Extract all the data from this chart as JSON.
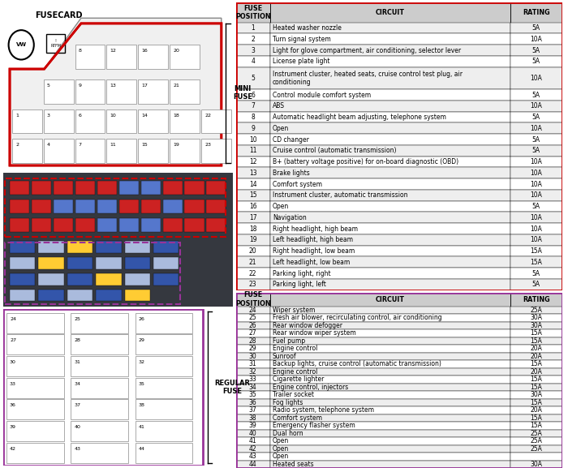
{
  "bg_color": "#ffffff",
  "mini_fuse_border": "#cc0000",
  "regular_fuse_border": "#993399",
  "table1_border": "#cc0000",
  "table2_border": "#993399",
  "table_header_bg": "#cccccc",
  "mini_fuse_label": "MINI\nFUSE",
  "regular_fuse_label": "REGULAR\nFUSE",
  "table1_headers": [
    "FUSE\nPOSITION",
    "CIRCUIT",
    "RATING"
  ],
  "table2_headers": [
    "FUSE\nPOSITION",
    "CIRCUIT",
    "RATING"
  ],
  "table1_data": [
    [
      1,
      "Heated washer nozzle",
      "5A"
    ],
    [
      2,
      "Turn signal system",
      "10A"
    ],
    [
      3,
      "Light for glove compartment, air conditioning, selector lever",
      "5A"
    ],
    [
      4,
      "License plate light",
      "5A"
    ],
    [
      5,
      "Instrument cluster, heated seats, cruise control test plug, air\nconditioning",
      "10A"
    ],
    [
      6,
      "Control module comfort system",
      "5A"
    ],
    [
      7,
      "ABS",
      "10A"
    ],
    [
      8,
      "Automatic headlight beam adjusting, telephone system",
      "5A"
    ],
    [
      9,
      "Open",
      "10A"
    ],
    [
      10,
      "CD changer",
      "5A"
    ],
    [
      11,
      "Cruise control (automatic transmission)",
      "5A"
    ],
    [
      12,
      "B+ (battery voltage positive) for on-board diagnostic (OBD)",
      "10A"
    ],
    [
      13,
      "Brake lights",
      "10A"
    ],
    [
      14,
      "Comfort system",
      "10A"
    ],
    [
      15,
      "Instrument cluster, automatic transmission",
      "10A"
    ],
    [
      16,
      "Open",
      "5A"
    ],
    [
      17,
      "Navigation",
      "10A"
    ],
    [
      18,
      "Right headlight, high beam",
      "10A"
    ],
    [
      19,
      "Left headlight, high beam",
      "10A"
    ],
    [
      20,
      "Right headlight, low beam",
      "15A"
    ],
    [
      21,
      "Left headlight, low beam",
      "15A"
    ],
    [
      22,
      "Parking light, right",
      "5A"
    ],
    [
      23,
      "Parking light, left",
      "5A"
    ]
  ],
  "table2_data": [
    [
      24,
      "Wiper system",
      "25A"
    ],
    [
      25,
      "Fresh air blower, recirculating control, air conditioning",
      "30A"
    ],
    [
      26,
      "Rear window defogger",
      "30A"
    ],
    [
      27,
      "Rear window wiper system",
      "15A"
    ],
    [
      28,
      "Fuel pump",
      "15A"
    ],
    [
      29,
      "Engine control",
      "20A"
    ],
    [
      30,
      "Sunroof",
      "20A"
    ],
    [
      31,
      "Backup lights, cruise control (automatic transmission)",
      "15A"
    ],
    [
      32,
      "Engine control",
      "20A"
    ],
    [
      33,
      "Cigarette lighter",
      "15A"
    ],
    [
      34,
      "Engine control, injectors",
      "15A"
    ],
    [
      35,
      "Trailer socket",
      "30A"
    ],
    [
      36,
      "Fog lights",
      "15A"
    ],
    [
      37,
      "Radio system, telephone system",
      "20A"
    ],
    [
      38,
      "Comfort system",
      "15A"
    ],
    [
      39,
      "Emergency flasher system",
      "15A"
    ],
    [
      40,
      "Dual horn",
      "25A"
    ],
    [
      41,
      "Open",
      "25A"
    ],
    [
      42,
      "Open",
      "25A"
    ],
    [
      43,
      "Open",
      ""
    ],
    [
      44,
      "Heated seats",
      "30A"
    ]
  ],
  "photo_fuse_rows": [
    [
      "#dd3333",
      "#dd3333",
      "#dd3333",
      "#dd3333",
      "#dd3333",
      "#dd3333",
      "#dd3333",
      "#dd3333",
      "#dd3333",
      "#dd3333"
    ],
    [
      "#dd3333",
      "#dd3333",
      "#dd3333",
      "#dd3333",
      "#dd3333",
      "#8888ff",
      "#8888ff",
      "#dd3333",
      "#dd3333",
      "#dd3333"
    ],
    [
      "#dd3333",
      "#dd3333",
      "#8888ff",
      "#8888ff",
      "#8888ff",
      "#8888ff",
      "#8888ff",
      "#dd3333",
      "#dd3333",
      "#dd3333"
    ]
  ],
  "photo_reg_rows": [
    [
      "#9999ff",
      "#9999ff",
      "#ffcc44",
      "#9999ff",
      "#9999ff",
      "#9999ff"
    ],
    [
      "#9999ff",
      "#ffcc44",
      "#9999ff",
      "#9999ff",
      "#9999ff",
      "#9999ff"
    ],
    [
      "#9999ff",
      "#9999ff",
      "#9999ff",
      "#9999ff",
      "#9999ff",
      "#aabbff"
    ],
    [
      "#9999ff",
      "#9999ff",
      "#ffcc44",
      "#9999ff",
      "#9999ff",
      "#9999ff"
    ]
  ]
}
